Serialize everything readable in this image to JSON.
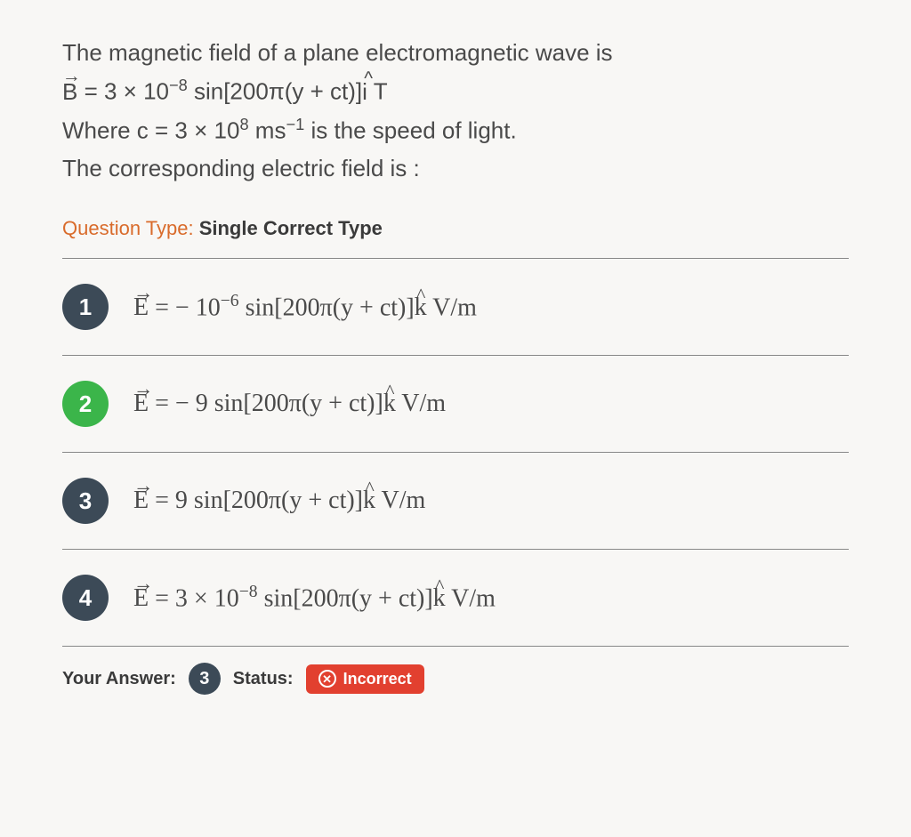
{
  "question": {
    "line1": "The magnetic field of a plane electromagnetic wave is",
    "line2_prefix": "B",
    "line2_eq": " = 3 × 10",
    "line2_exp": "−8",
    "line2_mid": " sin[200π(y + ct)]",
    "line2_unit": "i",
    "line2_suffix": " T",
    "line3_a": "Where c = 3 × 10",
    "line3_exp": "8",
    "line3_b": " ms",
    "line3_exp2": "−1",
    "line3_c": " is the speed of light.",
    "line4": "The corresponding electric field is :"
  },
  "questionType": {
    "label": "Question Type: ",
    "value": "Single Correct Type"
  },
  "options": {
    "o1": {
      "num": "1",
      "vec": "E",
      "a": " = − 10",
      "exp": "−6",
      "b": " sin[200π(y + ct)]",
      "hat": "k",
      "c": " V/m"
    },
    "o2": {
      "num": "2",
      "vec": "E",
      "a": " = − 9 sin[200π(y + ct)]",
      "hat": "k",
      "c": " V/m"
    },
    "o3": {
      "num": "3",
      "vec": "E",
      "a": " = 9 sin[200π(y + ct)]",
      "hat": "k",
      "c": " V/m"
    },
    "o4": {
      "num": "4",
      "vec": "E",
      "a": " = 3 × 10",
      "exp": "−8",
      "b": " sin[200π(y + ct)]",
      "hat": "k",
      "c": " V/m"
    }
  },
  "footer": {
    "yourAnswerLabel": "Your Answer:",
    "yourAnswerNum": "3",
    "statusLabel": "Status:",
    "statusValue": "Incorrect"
  },
  "colors": {
    "badgeDark": "#3c4a57",
    "badgeGreen": "#3bb54a",
    "statusRed": "#e2402f",
    "accentOrange": "#d96b2b",
    "background": "#f8f7f5",
    "text": "#4a4a4a",
    "separator": "#888888"
  }
}
